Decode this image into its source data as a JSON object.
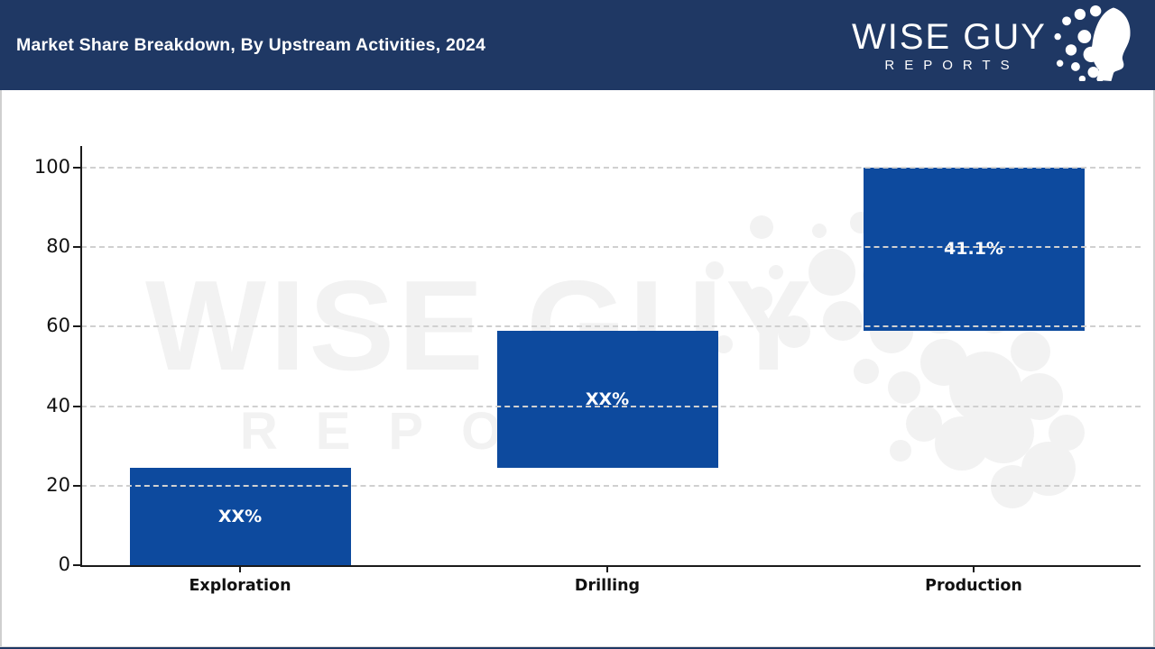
{
  "header": {
    "title": "Market Share Breakdown, By Upstream Activities, 2024",
    "logo": {
      "line1": "WISE GUY",
      "line2": "REPORTS"
    }
  },
  "watermark": {
    "line1": "WISE GUY",
    "line2": "REPORTS"
  },
  "colors": {
    "header_bg": "#1f3864",
    "bar": "#0d4a9e",
    "axis": "#1a1a1a",
    "grid": "#d0d0d0",
    "watermark": "#f2f2f2",
    "bar_label": "#ffffff"
  },
  "chart_data": {
    "type": "bar",
    "subtype": "waterfall",
    "title": "Market Share Breakdown, By Upstream Activities, 2024",
    "categories": [
      "Exploration",
      "Drilling",
      "Production"
    ],
    "segments": [
      {
        "category": "Exploration",
        "start": 0,
        "end": 24.4,
        "label": "XX%"
      },
      {
        "category": "Drilling",
        "start": 24.4,
        "end": 59.0,
        "label": "XX%"
      },
      {
        "category": "Production",
        "start": 59.0,
        "end": 100.1,
        "label": "41.1%"
      }
    ],
    "yticks": [
      0,
      20,
      40,
      60,
      80,
      100
    ],
    "ylim": [
      0,
      105.3
    ],
    "xlabel": "",
    "ylabel": "",
    "grid": "horizontal-dashed-over-bars",
    "legend": "none"
  }
}
